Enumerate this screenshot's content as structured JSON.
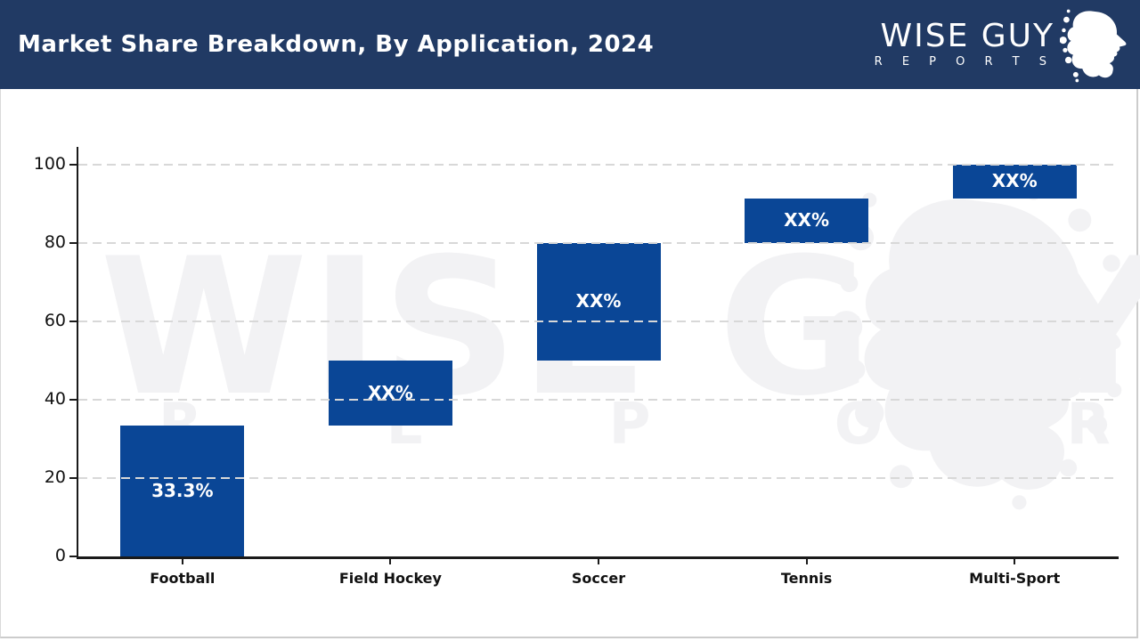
{
  "header": {
    "title": "Market Share Breakdown, By Application, 2024",
    "logo": {
      "line1": "WISE GUY",
      "line2": "R E P O R T S"
    }
  },
  "watermark": {
    "line1": "WISE GUY",
    "line2": "R E P O R T S"
  },
  "chart_data": {
    "type": "bar",
    "subtype": "floating-segment-waterfall",
    "title": "Market Share Breakdown, By Application, 2024",
    "categories": [
      "Football",
      "Field Hockey",
      "Soccer",
      "Tennis",
      "Multi-Sport"
    ],
    "segments": [
      {
        "category": "Football",
        "start": 0,
        "end": 33.3,
        "label": "33.3%"
      },
      {
        "category": "Field Hockey",
        "start": 33.3,
        "end": 50,
        "label": "XX%"
      },
      {
        "category": "Soccer",
        "start": 50,
        "end": 80,
        "label": "XX%"
      },
      {
        "category": "Tennis",
        "start": 80,
        "end": 91.4,
        "label": "XX%"
      },
      {
        "category": "Multi-Sport",
        "start": 91.4,
        "end": 100,
        "label": "XX%"
      }
    ],
    "y_ticks": [
      0,
      20,
      40,
      60,
      80,
      100
    ],
    "ylim": [
      0,
      105
    ],
    "xlabel": "",
    "ylabel": "",
    "grid": "horizontal-dashed",
    "legend": "none",
    "colors": {
      "bar": "#0a4696",
      "header_background": "#213a64",
      "header_text": "#ffffff",
      "bar_label_text": "#ffffff",
      "gridline": "#d8d8d8",
      "axis": "#1a1a1a",
      "watermark": "#f2f2f4"
    }
  }
}
